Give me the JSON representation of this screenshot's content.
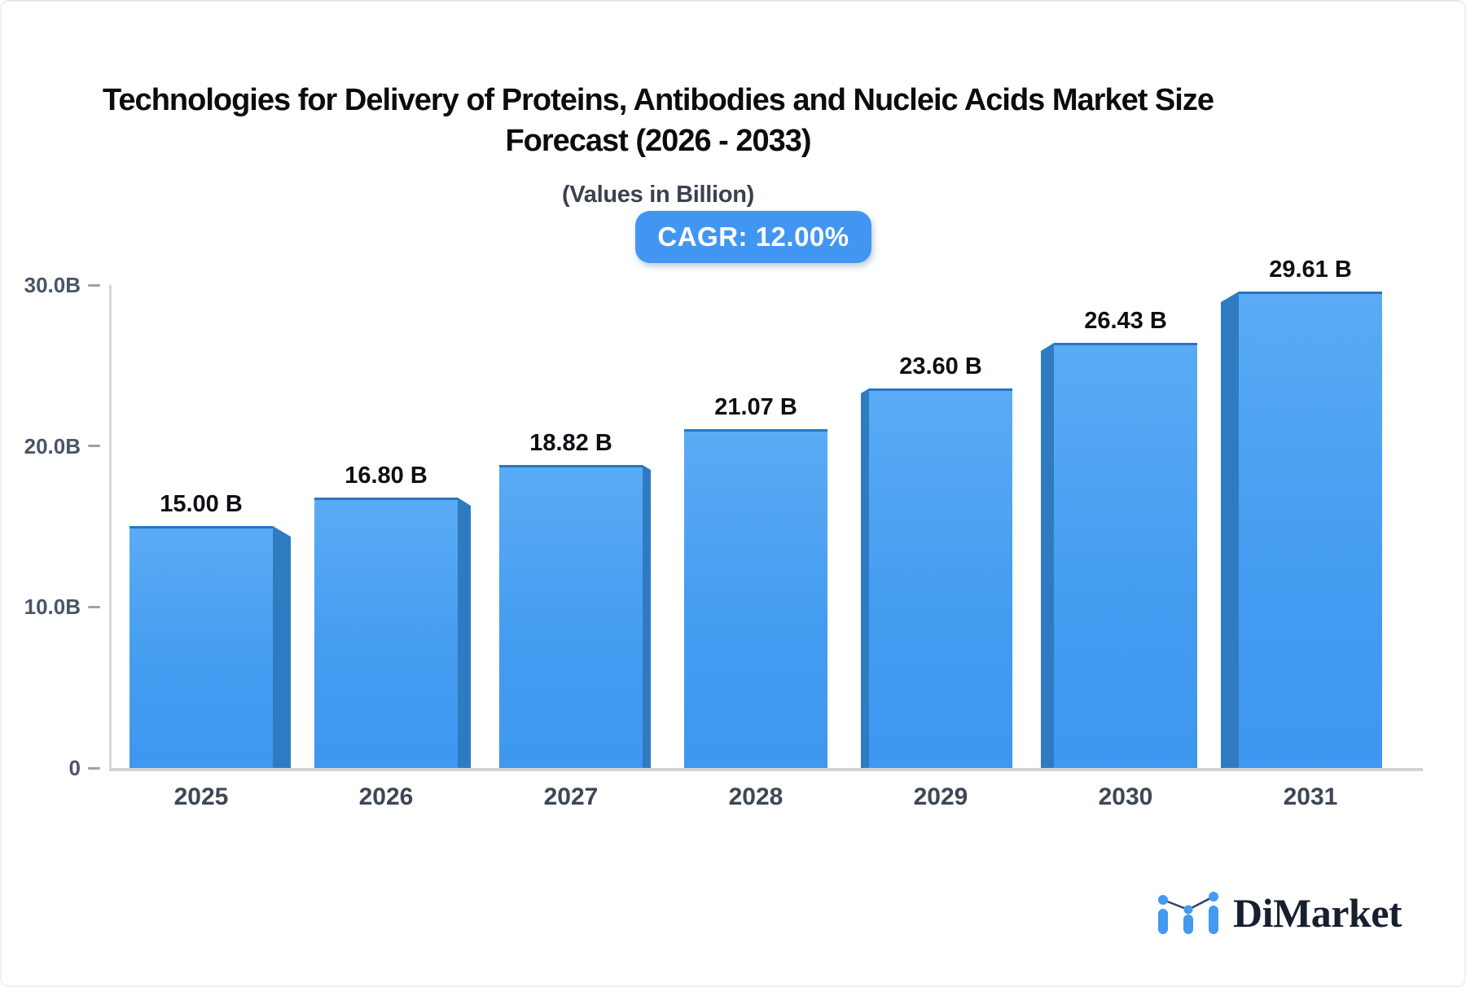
{
  "title_line_1": "Technologies for Delivery of Proteins, Antibodies and Nucleic Acids Market Size",
  "title_line_2": "Forecast (2026 - 2033)",
  "subtitle": "(Values in Billion)",
  "cagr_badge": "CAGR: 12.00%",
  "chart_data": {
    "type": "bar",
    "categories": [
      "2025",
      "2026",
      "2027",
      "2028",
      "2029",
      "2030",
      "2031"
    ],
    "values": [
      15.0,
      16.8,
      18.82,
      21.07,
      23.6,
      26.43,
      29.61
    ],
    "value_labels": [
      "15.00 B",
      "16.80 B",
      "18.82 B",
      "21.07 B",
      "23.60 B",
      "26.43 B",
      "29.61 B"
    ],
    "y_ticks": [
      "30.0B",
      "20.0B",
      "10.0B",
      "0"
    ],
    "ylim": [
      0,
      30
    ],
    "xlabel": "",
    "ylabel": "",
    "grid": "off",
    "legend": "none",
    "bar_face_color_top": "#5AABF4",
    "bar_face_color_bottom": "#3E97F0",
    "bar_top_edge_color": "#2776C5",
    "bar_side_color": "#2E7BC2",
    "style": "pseudo-3d bars, center perspective"
  },
  "colors": {
    "badge_bg": "#4196F2",
    "badge_text": "#FFFFFF",
    "axis_line": "#D4D5D9",
    "tick_text": "#4A5568",
    "title_text": "#0C0C0E"
  },
  "branding": {
    "logo_text": "DiMarket",
    "logo_icon": "mini-bar-chart-icon",
    "logo_icon_color": "#4499F0",
    "logo_line_color": "#31465F"
  }
}
